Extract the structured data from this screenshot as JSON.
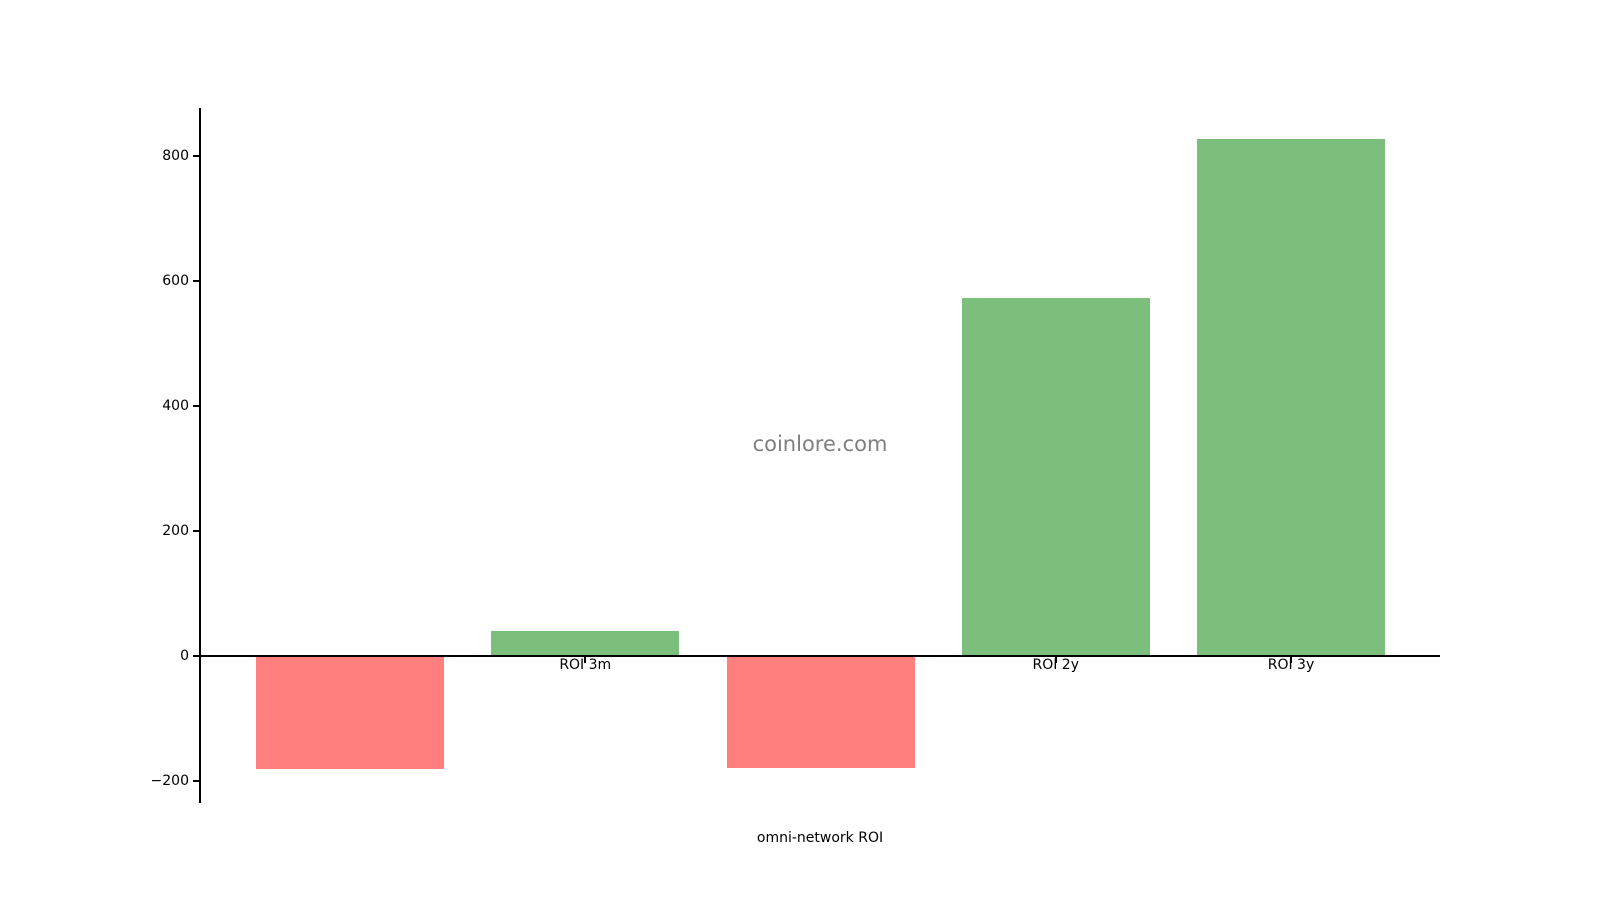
{
  "watermark": {
    "text": "coinlore.com",
    "color": "#7f7f7f"
  },
  "chart_data": {
    "type": "bar",
    "title": "",
    "xlabel": "omni-network ROI",
    "ylabel": "",
    "categories": [
      "",
      "ROI 3m",
      "",
      "ROI 2y",
      "ROI 3y"
    ],
    "values": [
      -181,
      40,
      -179,
      573,
      827
    ],
    "ytick_values": [
      800,
      600,
      400,
      200,
      0,
      -200
    ],
    "ytick_labels": [
      "800",
      "600",
      "400",
      "200",
      "0",
      "−200"
    ],
    "ylim": [
      -235,
      877
    ],
    "grid": false,
    "legend_position": "none",
    "bar_color_positive": "#7cbf7c",
    "bar_color_negative": "#ff7f7f",
    "axis_color": "#000000",
    "background_color": "#ffffff"
  }
}
